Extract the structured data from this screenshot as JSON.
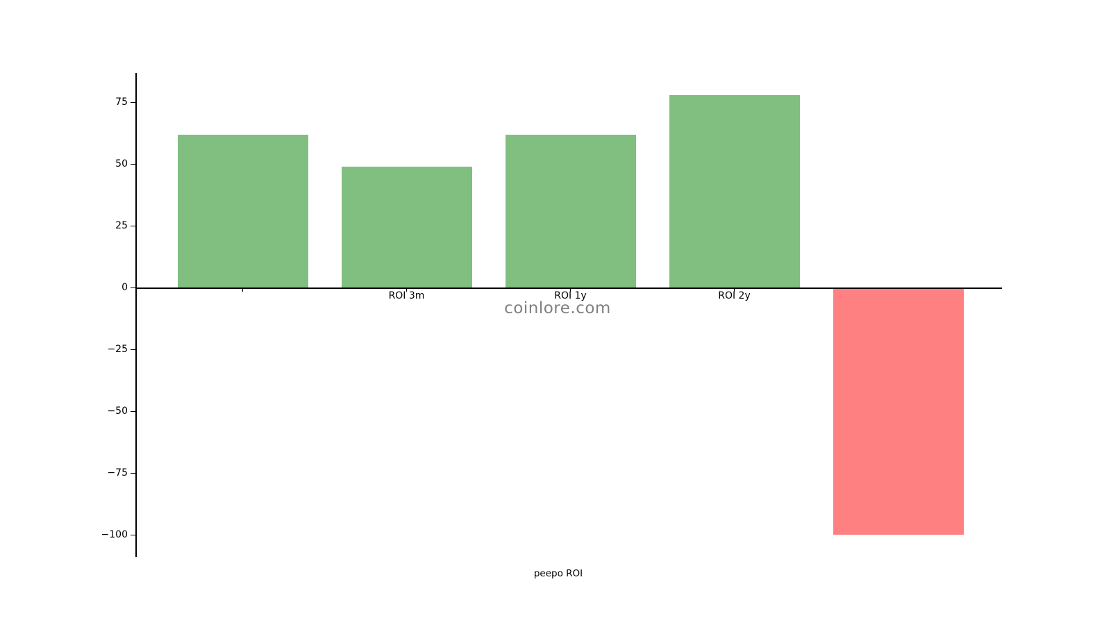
{
  "chart_data": {
    "type": "bar",
    "title": "peepo ROI",
    "watermark": "coinlore.com",
    "categories": [
      "",
      "ROI 3m",
      "ROI 1y",
      "ROI 2y",
      ""
    ],
    "values": [
      62,
      49,
      62,
      78,
      -100
    ],
    "positive_color": "#80bf80",
    "negative_color": "#ff8080",
    "axis_color": "#000000",
    "watermark_color": "#808080",
    "y_ticks": [
      75,
      50,
      25,
      0,
      -25,
      -50,
      -75,
      -100
    ],
    "y_tick_labels": [
      "75",
      "50",
      "25",
      "0",
      "−25",
      "−50",
      "−75",
      "−100"
    ],
    "ylim": [
      -108.9,
      86.9
    ],
    "xlabel": "",
    "ylabel": "",
    "grid": false,
    "legend": null
  }
}
